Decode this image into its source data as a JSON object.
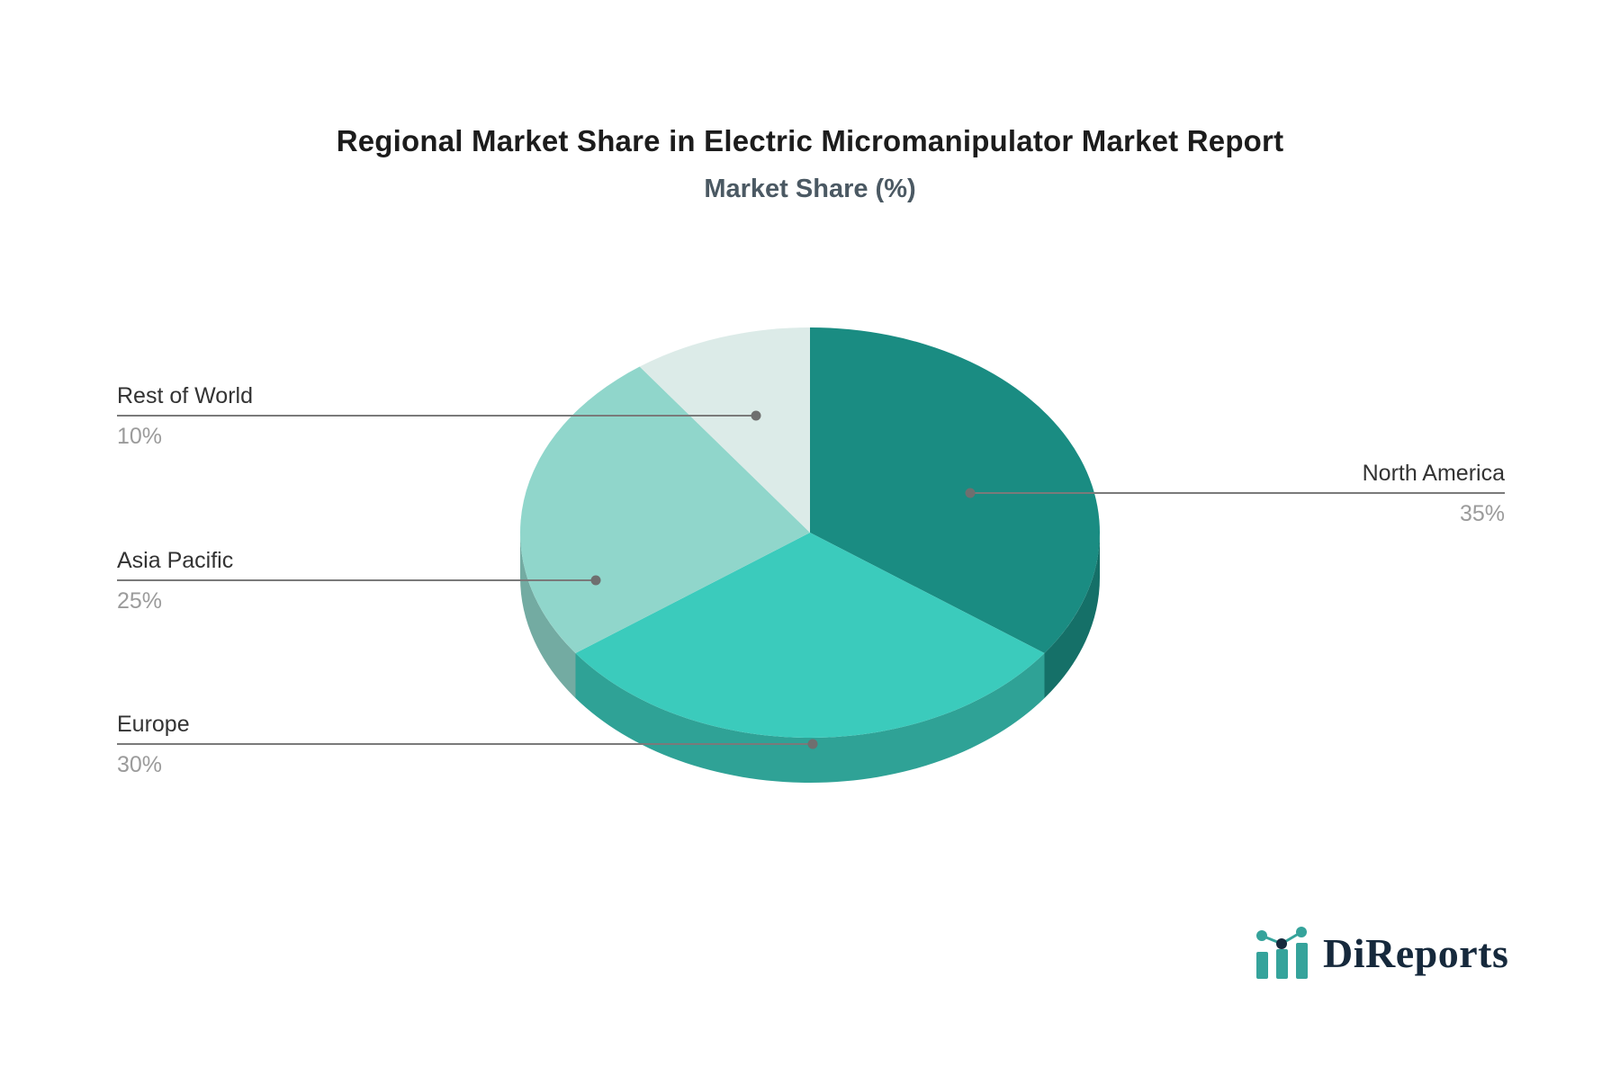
{
  "chart_data": {
    "type": "pie",
    "style": "pie3d",
    "title": "Regional Market Share in Electric Micromanipulator Market Report",
    "subtitle": "Market Share (%)",
    "unit": "%",
    "direction": "clockwise",
    "start_angle_deg": 0,
    "legend_position": "none",
    "slices": [
      {
        "label": "North America",
        "value": 35,
        "pct_label": "35%",
        "color": "#1A8C82"
      },
      {
        "label": "Europe",
        "value": 30,
        "pct_label": "30%",
        "color": "#3BCBBC"
      },
      {
        "label": "Asia Pacific",
        "value": 25,
        "pct_label": "25%",
        "color": "#90D6CB"
      },
      {
        "label": "Rest of World",
        "value": 10,
        "pct_label": "10%",
        "color": "#DCEBE8"
      }
    ]
  },
  "colors": {
    "background": "#ffffff",
    "title_text": "#1c1c1c",
    "subtitle_text": "#4b5963",
    "label_text": "#333333",
    "pct_text": "#9b9b9b",
    "leader_line": "#7a7a7a",
    "leader_dot": "#6f6f6f",
    "logo_navy": "#16293c",
    "logo_teal": "#35a39b"
  },
  "logo": {
    "text": "DiReports",
    "icon": "bar-line-chart-icon"
  }
}
